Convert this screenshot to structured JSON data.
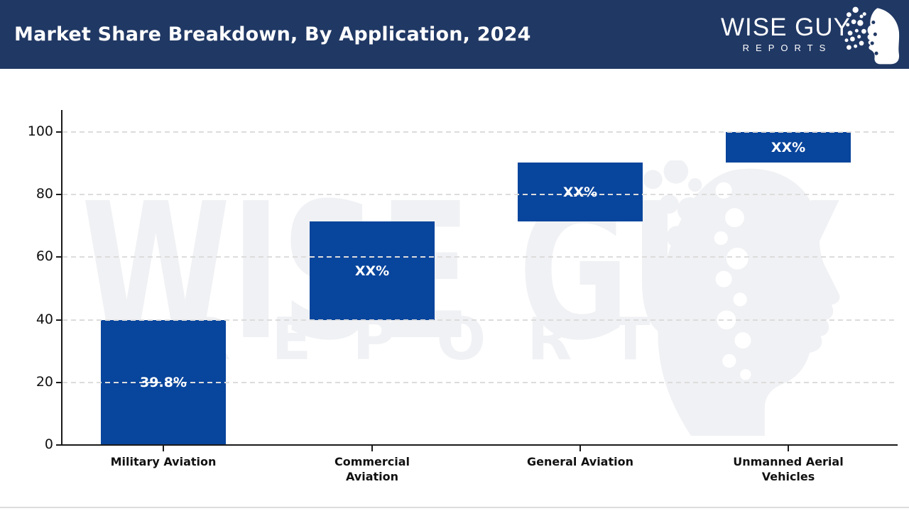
{
  "header": {
    "title": "Market Share Breakdown, By Application, 2024",
    "bg_color": "#203864",
    "logo": {
      "line1": "WISE GUY",
      "line2": "REPORTS"
    }
  },
  "watermark": {
    "line1": "WISE GUY",
    "line2": "REPORTS"
  },
  "chart_data": {
    "type": "bar",
    "subtype": "waterfall",
    "title": "Market Share Breakdown, By Application, 2024",
    "categories": [
      "Military Aviation",
      "Commercial Aviation",
      "General Aviation",
      "Unmanned Aerial Vehicles"
    ],
    "category_label_lines": [
      [
        "Military Aviation"
      ],
      [
        "Commercial",
        "Aviation"
      ],
      [
        "General Aviation"
      ],
      [
        "Unmanned Aerial",
        "Vehicles"
      ]
    ],
    "segments": [
      {
        "category": "Military Aviation",
        "start": 0,
        "end": 39.8,
        "label": "39.8%"
      },
      {
        "category": "Commercial Aviation",
        "start": 39.8,
        "end": 71.4,
        "label": "XX%"
      },
      {
        "category": "General Aviation",
        "start": 71.4,
        "end": 90.2,
        "label": "XX%"
      },
      {
        "category": "Unmanned Aerial Vehicles",
        "start": 90.2,
        "end": 100,
        "label": "XX%"
      }
    ],
    "ylim": [
      0,
      100
    ],
    "yticks": [
      0,
      20,
      40,
      60,
      80,
      100
    ],
    "grid": "horizontal-dashed",
    "legend": "none",
    "bar_color": "#08459c",
    "bar_label_color": "#ffffff"
  }
}
